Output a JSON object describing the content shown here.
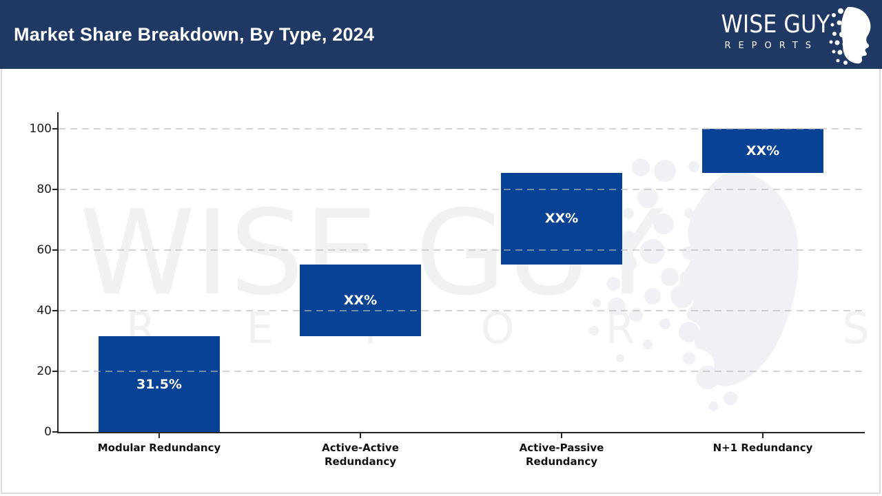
{
  "header": {
    "title": "Market Share Breakdown, By Type, 2024",
    "logo": {
      "brand": "WISE GUY",
      "sub": "REPORTS"
    }
  },
  "watermark": {
    "brand": "WISE GUY",
    "sub": "R E P O R T S"
  },
  "chart_data": {
    "type": "bar",
    "subtype": "floating-waterfall",
    "title": "Market Share Breakdown, By Type, 2024",
    "categories": [
      "Modular Redundancy",
      "Active-Active Redundancy",
      "Active-Passive Redundancy",
      "N+1 Redundancy"
    ],
    "category_lines": [
      [
        "Modular Redundancy"
      ],
      [
        "Active-Active",
        "Redundancy"
      ],
      [
        "Active-Passive",
        "Redundancy"
      ],
      [
        "N+1 Redundancy"
      ]
    ],
    "bars": [
      {
        "start": 0,
        "end": 31.5,
        "label": "31.5%"
      },
      {
        "start": 31.5,
        "end": 55.3,
        "label": "XX%"
      },
      {
        "start": 55.3,
        "end": 85.5,
        "label": "XX%"
      },
      {
        "start": 85.5,
        "end": 100,
        "label": "XX%"
      }
    ],
    "ylim": [
      0,
      100
    ],
    "yticks": [
      0,
      20,
      40,
      60,
      80,
      100
    ],
    "grid": true,
    "legend": false,
    "bar_color": "#084294",
    "bar_label_color": "#ffffff",
    "axis_color": "#262626",
    "gridline_color": "#bdbdbd"
  }
}
